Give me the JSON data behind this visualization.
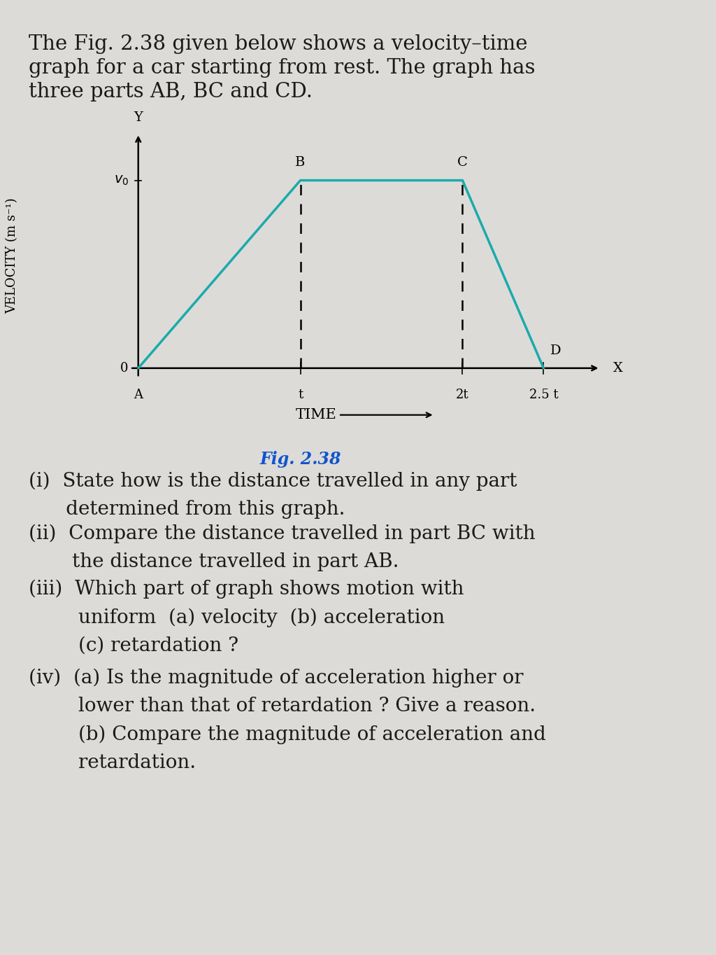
{
  "background_color": "#dddbd8",
  "intro_lines": [
    "The Fig. 2.38 given below shows a velocity–time",
    "graph for a car starting from rest. The graph has",
    "three parts AB, BC and CD."
  ],
  "intro_fontsize": 21,
  "graph": {
    "points": {
      "A": [
        0,
        0
      ],
      "B": [
        1,
        1
      ],
      "C": [
        2,
        1
      ],
      "D": [
        2.5,
        0
      ]
    },
    "line_color": "#1aabab",
    "xlim": [
      -0.08,
      3.1
    ],
    "ylim": [
      -0.15,
      1.35
    ],
    "fig_caption": "Fig. 2.38",
    "caption_color": "#1155cc"
  },
  "q1_lines": [
    "(i)  State how is the distance travelled in any part",
    "      determined from this graph."
  ],
  "q2_lines": [
    "(ii)  Compare the distance travelled in part BC with",
    "       the distance travelled in part AB."
  ],
  "q3_lines": [
    "(iii)  Which part of graph shows motion with",
    "        uniform  (a) velocity  (b) acceleration",
    "        (c) retardation ?"
  ],
  "q4_lines": [
    "(iv)  (a) Is the magnitude of acceleration higher or",
    "        lower than that of retardation ? Give a reason.",
    "        (b) Compare the magnitude of acceleration and",
    "        retardation."
  ],
  "question_fontsize": 20,
  "text_color": "#1a1a1a"
}
